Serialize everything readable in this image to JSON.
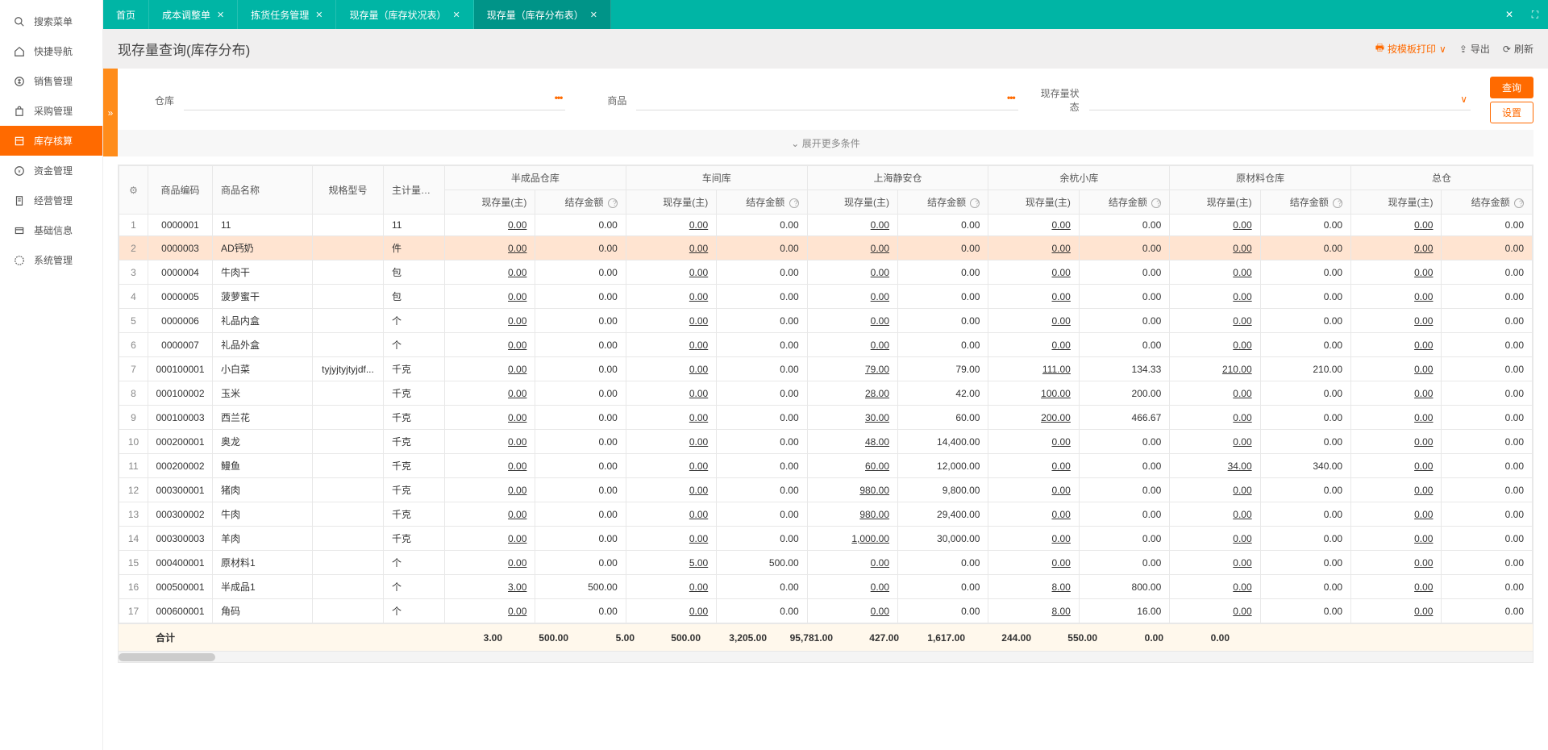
{
  "sidebar": {
    "items": [
      {
        "label": "搜索菜单",
        "icon": "search"
      },
      {
        "label": "快捷导航",
        "icon": "home"
      },
      {
        "label": "销售管理",
        "icon": "sale"
      },
      {
        "label": "采购管理",
        "icon": "bag"
      },
      {
        "label": "库存核算",
        "icon": "box",
        "active": true
      },
      {
        "label": "资金管理",
        "icon": "money"
      },
      {
        "label": "经营管理",
        "icon": "doc"
      },
      {
        "label": "基础信息",
        "icon": "info"
      },
      {
        "label": "系统管理",
        "icon": "gear"
      }
    ]
  },
  "tabs": [
    {
      "label": "首页",
      "closable": false
    },
    {
      "label": "成本调整单",
      "closable": true
    },
    {
      "label": "拣货任务管理",
      "closable": true
    },
    {
      "label": "现存量（库存状况表）",
      "closable": true
    },
    {
      "label": "现存量（库存分布表）",
      "closable": true,
      "active": true
    }
  ],
  "page": {
    "title": "现存量查询(库存分布)",
    "actions": {
      "print": "按模板打印",
      "export": "导出",
      "refresh": "刷新"
    }
  },
  "filter": {
    "warehouse_label": "仓库",
    "product_label": "商品",
    "status_label": "现存量状态",
    "query": "查询",
    "settings": "设置",
    "expand": "展开更多条件"
  },
  "table": {
    "gear": "⚙",
    "headers": {
      "code": "商品编码",
      "name": "商品名称",
      "spec": "规格型号",
      "unit": "主计量单位",
      "groups": [
        "半成品仓库",
        "车间库",
        "上海静安仓",
        "余杭小库",
        "原材料仓库",
        "总仓"
      ],
      "qty": "现存量(主)",
      "amt": "结存金额"
    },
    "rows": [
      {
        "idx": 1,
        "code": "0000001",
        "name": "11",
        "spec": "",
        "unit": "11",
        "vals": [
          "0.00",
          "0.00",
          "0.00",
          "0.00",
          "0.00",
          "0.00",
          "0.00",
          "0.00",
          "0.00",
          "0.00",
          "0.00",
          "0.00"
        ]
      },
      {
        "idx": 2,
        "code": "0000003",
        "name": "AD钙奶",
        "spec": "",
        "unit": "件",
        "vals": [
          "0.00",
          "0.00",
          "0.00",
          "0.00",
          "0.00",
          "0.00",
          "0.00",
          "0.00",
          "0.00",
          "0.00",
          "0.00",
          "0.00"
        ]
      },
      {
        "idx": 3,
        "code": "0000004",
        "name": "牛肉干",
        "spec": "",
        "unit": "包",
        "vals": [
          "0.00",
          "0.00",
          "0.00",
          "0.00",
          "0.00",
          "0.00",
          "0.00",
          "0.00",
          "0.00",
          "0.00",
          "0.00",
          "0.00"
        ]
      },
      {
        "idx": 4,
        "code": "0000005",
        "name": "菠萝蜜干",
        "spec": "",
        "unit": "包",
        "vals": [
          "0.00",
          "0.00",
          "0.00",
          "0.00",
          "0.00",
          "0.00",
          "0.00",
          "0.00",
          "0.00",
          "0.00",
          "0.00",
          "0.00"
        ]
      },
      {
        "idx": 5,
        "code": "0000006",
        "name": "礼品内盒",
        "spec": "",
        "unit": "个",
        "vals": [
          "0.00",
          "0.00",
          "0.00",
          "0.00",
          "0.00",
          "0.00",
          "0.00",
          "0.00",
          "0.00",
          "0.00",
          "0.00",
          "0.00"
        ]
      },
      {
        "idx": 6,
        "code": "0000007",
        "name": "礼品外盒",
        "spec": "",
        "unit": "个",
        "vals": [
          "0.00",
          "0.00",
          "0.00",
          "0.00",
          "0.00",
          "0.00",
          "0.00",
          "0.00",
          "0.00",
          "0.00",
          "0.00",
          "0.00"
        ]
      },
      {
        "idx": 7,
        "code": "000100001",
        "name": "小白菜",
        "spec": "tyjyjtyjtyjdf...",
        "unit": "千克",
        "vals": [
          "0.00",
          "0.00",
          "0.00",
          "0.00",
          "79.00",
          "79.00",
          "111.00",
          "134.33",
          "210.00",
          "210.00",
          "0.00",
          "0.00"
        ]
      },
      {
        "idx": 8,
        "code": "000100002",
        "name": "玉米",
        "spec": "",
        "unit": "千克",
        "vals": [
          "0.00",
          "0.00",
          "0.00",
          "0.00",
          "28.00",
          "42.00",
          "100.00",
          "200.00",
          "0.00",
          "0.00",
          "0.00",
          "0.00"
        ]
      },
      {
        "idx": 9,
        "code": "000100003",
        "name": "西兰花",
        "spec": "",
        "unit": "千克",
        "vals": [
          "0.00",
          "0.00",
          "0.00",
          "0.00",
          "30.00",
          "60.00",
          "200.00",
          "466.67",
          "0.00",
          "0.00",
          "0.00",
          "0.00"
        ]
      },
      {
        "idx": 10,
        "code": "000200001",
        "name": "奥龙",
        "spec": "",
        "unit": "千克",
        "vals": [
          "0.00",
          "0.00",
          "0.00",
          "0.00",
          "48.00",
          "14,400.00",
          "0.00",
          "0.00",
          "0.00",
          "0.00",
          "0.00",
          "0.00"
        ]
      },
      {
        "idx": 11,
        "code": "000200002",
        "name": "鳗鱼",
        "spec": "",
        "unit": "千克",
        "vals": [
          "0.00",
          "0.00",
          "0.00",
          "0.00",
          "60.00",
          "12,000.00",
          "0.00",
          "0.00",
          "34.00",
          "340.00",
          "0.00",
          "0.00"
        ]
      },
      {
        "idx": 12,
        "code": "000300001",
        "name": "猪肉",
        "spec": "",
        "unit": "千克",
        "vals": [
          "0.00",
          "0.00",
          "0.00",
          "0.00",
          "980.00",
          "9,800.00",
          "0.00",
          "0.00",
          "0.00",
          "0.00",
          "0.00",
          "0.00"
        ]
      },
      {
        "idx": 13,
        "code": "000300002",
        "name": "牛肉",
        "spec": "",
        "unit": "千克",
        "vals": [
          "0.00",
          "0.00",
          "0.00",
          "0.00",
          "980.00",
          "29,400.00",
          "0.00",
          "0.00",
          "0.00",
          "0.00",
          "0.00",
          "0.00"
        ]
      },
      {
        "idx": 14,
        "code": "000300003",
        "name": "羊肉",
        "spec": "",
        "unit": "千克",
        "vals": [
          "0.00",
          "0.00",
          "0.00",
          "0.00",
          "1,000.00",
          "30,000.00",
          "0.00",
          "0.00",
          "0.00",
          "0.00",
          "0.00",
          "0.00"
        ]
      },
      {
        "idx": 15,
        "code": "000400001",
        "name": "原材料1",
        "spec": "",
        "unit": "个",
        "vals": [
          "0.00",
          "0.00",
          "5.00",
          "500.00",
          "0.00",
          "0.00",
          "0.00",
          "0.00",
          "0.00",
          "0.00",
          "0.00",
          "0.00"
        ]
      },
      {
        "idx": 16,
        "code": "000500001",
        "name": "半成品1",
        "spec": "",
        "unit": "个",
        "vals": [
          "3.00",
          "500.00",
          "0.00",
          "0.00",
          "0.00",
          "0.00",
          "8.00",
          "800.00",
          "0.00",
          "0.00",
          "0.00",
          "0.00"
        ]
      },
      {
        "idx": 17,
        "code": "000600001",
        "name": "角码",
        "spec": "",
        "unit": "个",
        "vals": [
          "0.00",
          "0.00",
          "0.00",
          "0.00",
          "0.00",
          "0.00",
          "8.00",
          "16.00",
          "0.00",
          "0.00",
          "0.00",
          "0.00"
        ]
      }
    ],
    "totals_label": "合计",
    "totals": [
      "3.00",
      "500.00",
      "5.00",
      "500.00",
      "3,205.00",
      "95,781.00",
      "427.00",
      "1,617.00",
      "244.00",
      "550.00",
      "0.00",
      "0.00"
    ]
  }
}
